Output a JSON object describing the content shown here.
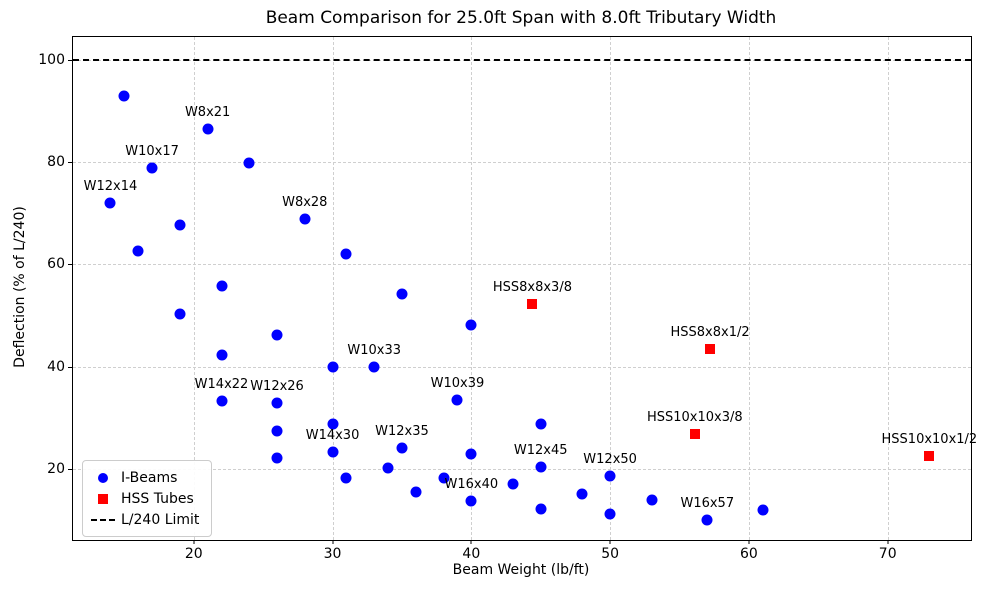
{
  "chart_data": {
    "type": "scatter",
    "title": "Beam Comparison for 25.0ft Span with 8.0ft Tributary Width",
    "xlabel": "Beam Weight (lb/ft)",
    "ylabel": "Deflection (% of L/240)",
    "xlim": [
      11.3,
      76.0
    ],
    "ylim": [
      6.1,
      104.5
    ],
    "x_ticks": [
      20,
      30,
      40,
      50,
      60,
      70
    ],
    "y_ticks": [
      20,
      40,
      60,
      80,
      100
    ],
    "grid": true,
    "limit_line": {
      "y": 100,
      "label": "L/240 Limit",
      "color": "#000000",
      "style": "dashed"
    },
    "legend": {
      "position": "lower-left",
      "entries": [
        {
          "label": "I-Beams",
          "marker": "circle",
          "color": "#0000ff"
        },
        {
          "label": "HSS Tubes",
          "marker": "square",
          "color": "#ff0000"
        },
        {
          "label": "L/240 Limit",
          "marker": "dashed-line",
          "color": "#000000"
        }
      ]
    },
    "series": [
      {
        "name": "I-Beams",
        "marker": "circle",
        "color": "#0000ff",
        "points": [
          {
            "x": 15,
            "y": 93.0,
            "label": ""
          },
          {
            "x": 21,
            "y": 86.6,
            "label": "W8x21"
          },
          {
            "x": 24,
            "y": 79.9,
            "label": ""
          },
          {
            "x": 17,
            "y": 78.8,
            "label": "W10x17"
          },
          {
            "x": 14,
            "y": 72.0,
            "label": "W12x14"
          },
          {
            "x": 28,
            "y": 68.9,
            "label": "W8x28"
          },
          {
            "x": 19,
            "y": 67.7,
            "label": ""
          },
          {
            "x": 16,
            "y": 62.6,
            "label": ""
          },
          {
            "x": 31,
            "y": 62.0,
            "label": ""
          },
          {
            "x": 22,
            "y": 55.8,
            "label": ""
          },
          {
            "x": 35,
            "y": 54.2,
            "label": ""
          },
          {
            "x": 19,
            "y": 50.3,
            "label": ""
          },
          {
            "x": 40,
            "y": 48.1,
            "label": ""
          },
          {
            "x": 26,
            "y": 46.2,
            "label": ""
          },
          {
            "x": 22,
            "y": 42.3,
            "label": ""
          },
          {
            "x": 30,
            "y": 39.9,
            "label": ""
          },
          {
            "x": 33,
            "y": 40.0,
            "label": "W10x33"
          },
          {
            "x": 39,
            "y": 33.5,
            "label": "W10x39"
          },
          {
            "x": 22,
            "y": 33.3,
            "label": "W14x22"
          },
          {
            "x": 26,
            "y": 32.9,
            "label": "W12x26"
          },
          {
            "x": 45,
            "y": 28.8,
            "label": ""
          },
          {
            "x": 30,
            "y": 28.7,
            "label": ""
          },
          {
            "x": 26,
            "y": 27.5,
            "label": ""
          },
          {
            "x": 35,
            "y": 24.1,
            "label": "W12x35"
          },
          {
            "x": 30,
            "y": 23.4,
            "label": "W14x30"
          },
          {
            "x": 40,
            "y": 23.0,
            "label": ""
          },
          {
            "x": 26,
            "y": 22.1,
            "label": ""
          },
          {
            "x": 45,
            "y": 20.4,
            "label": "W12x45"
          },
          {
            "x": 34,
            "y": 20.2,
            "label": ""
          },
          {
            "x": 50,
            "y": 18.7,
            "label": "W12x50"
          },
          {
            "x": 31,
            "y": 18.2,
            "label": ""
          },
          {
            "x": 38,
            "y": 18.2,
            "label": ""
          },
          {
            "x": 43,
            "y": 17.0,
            "label": ""
          },
          {
            "x": 36,
            "y": 15.5,
            "label": ""
          },
          {
            "x": 48,
            "y": 15.1,
            "label": ""
          },
          {
            "x": 40,
            "y": 13.7,
            "label": "W16x40"
          },
          {
            "x": 53,
            "y": 13.9,
            "label": ""
          },
          {
            "x": 45,
            "y": 12.1,
            "label": ""
          },
          {
            "x": 61,
            "y": 11.9,
            "label": ""
          },
          {
            "x": 50,
            "y": 11.1,
            "label": ""
          },
          {
            "x": 57,
            "y": 10.0,
            "label": "W16x57"
          }
        ]
      },
      {
        "name": "HSS Tubes",
        "marker": "square",
        "color": "#ff0000",
        "points": [
          {
            "x": 44.4,
            "y": 52.3,
            "label": "HSS8x8x3/8"
          },
          {
            "x": 57.2,
            "y": 43.5,
            "label": "HSS8x8x1/2"
          },
          {
            "x": 56.1,
            "y": 26.8,
            "label": "HSS10x10x3/8"
          },
          {
            "x": 73.0,
            "y": 22.5,
            "label": "HSS10x10x1/2"
          }
        ]
      }
    ]
  }
}
